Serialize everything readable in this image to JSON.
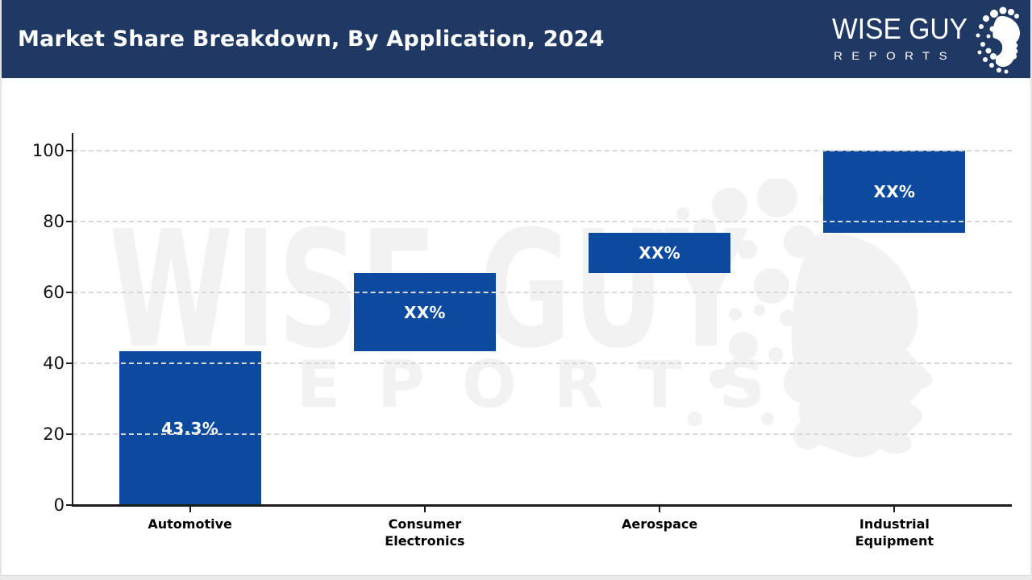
{
  "header": {
    "title": "Market Share Breakdown, By Application, 2024",
    "bg_color": "#1f3864",
    "logo": {
      "line1": "WISE GUY",
      "line2": "REPORTS"
    }
  },
  "watermark": {
    "line1": "WISE GUY",
    "line2": "REPORTS"
  },
  "chart_data": {
    "type": "bar",
    "subtype": "waterfall",
    "title": "Market Share Breakdown, By Application, 2024",
    "categories": [
      "Automotive",
      "Consumer Electronics",
      "Aerospace",
      "Industrial Equipment"
    ],
    "x_tick_labels": [
      "Automotive",
      "Consumer\nElectronics",
      "Aerospace",
      "Industrial\nEquipment"
    ],
    "series": [
      {
        "name": "Market Share (%)",
        "segments": [
          {
            "category": "Automotive",
            "start": 0,
            "end": 43.3,
            "value": 43.3,
            "label": "43.3%"
          },
          {
            "category": "Consumer Electronics",
            "start": 43.3,
            "end": 65.3,
            "value": 22.0,
            "label": "XX%"
          },
          {
            "category": "Aerospace",
            "start": 65.3,
            "end": 76.8,
            "value": 11.5,
            "label": "XX%"
          },
          {
            "category": "Industrial Equipment",
            "start": 76.8,
            "end": 100,
            "value": 23.2,
            "label": "XX%"
          }
        ]
      }
    ],
    "ylim": [
      0,
      100
    ],
    "yticks": [
      0,
      20,
      40,
      60,
      80,
      100
    ],
    "grid": "horizontal-dashed",
    "grid_over_bars": true,
    "legend": "none",
    "bar_color": "#0b4a9e",
    "bar_label_color": "#ffffff",
    "grid_color": "#d8d8d8",
    "axis_color": "#1c1c1c",
    "watermark_color": "#f2f2f2"
  }
}
